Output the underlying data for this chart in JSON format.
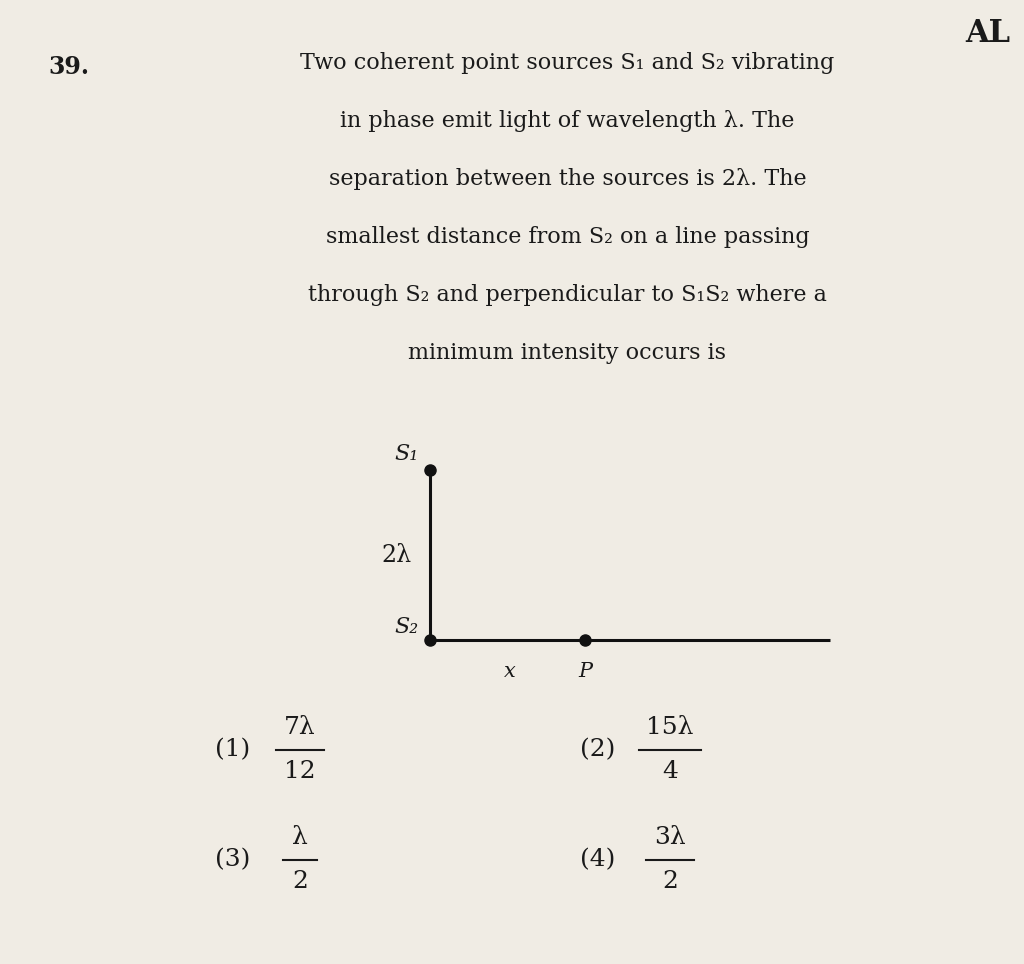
{
  "background_color": "#f0ece4",
  "question_number": "39.",
  "question_text_lines": [
    "Two coherent point sources S₁ and S₂ vibrating",
    "in phase emit light of wavelength λ. The",
    "separation between the sources is 2λ. The",
    "smallest distance from S₂ on a line passing",
    "through S₂ and perpendicular to S₁S₂ where a",
    "minimum intensity occurs is"
  ],
  "diagram": {
    "s1_label": "S₁",
    "s2_label": "S₂",
    "separation_label": "2λ",
    "x_label": "x",
    "p_label": "P",
    "line_color": "#111111",
    "dot_color": "#111111"
  },
  "options": [
    {
      "num": "(1)",
      "numerator": "7λ",
      "denominator": "12"
    },
    {
      "num": "(2)",
      "numerator": "15λ",
      "denominator": "4"
    },
    {
      "num": "(3)",
      "numerator": "λ",
      "denominator": "2"
    },
    {
      "num": "(4)",
      "numerator": "3λ",
      "denominator": "2"
    }
  ],
  "header_text": "AL",
  "text_color": "#1a1a1a",
  "font_size_q_num": 17,
  "font_size_text": 16,
  "font_size_options": 18,
  "font_size_diagram": 15
}
